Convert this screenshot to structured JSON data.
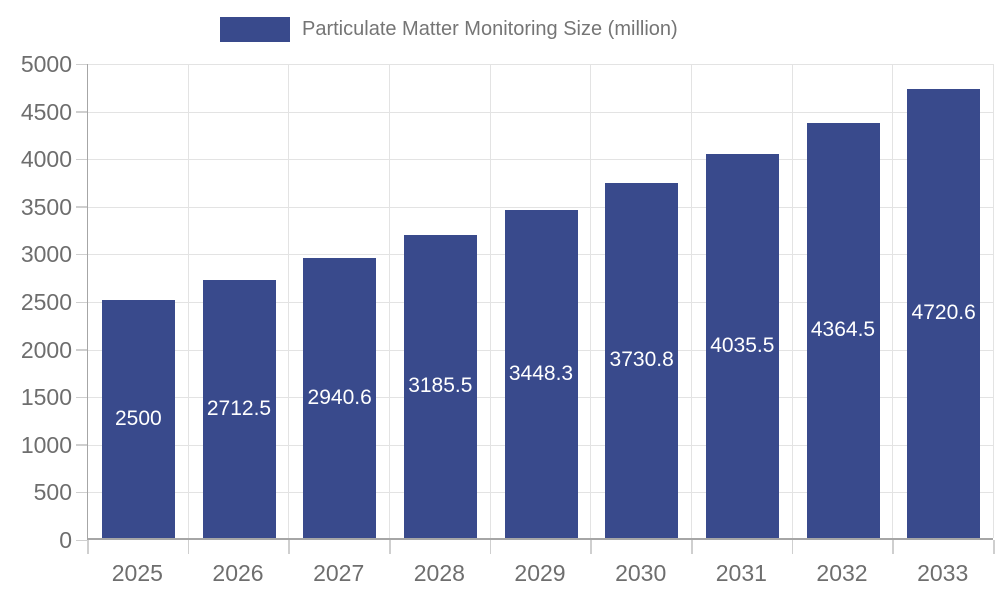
{
  "chart_data": {
    "type": "bar",
    "title": "Particulate Matter Monitoring Size (million)",
    "legend": {
      "label": "Particulate Matter Monitoring Size (million)",
      "position": "top-center"
    },
    "categories": [
      "2025",
      "2026",
      "2027",
      "2028",
      "2029",
      "2030",
      "2031",
      "2032",
      "2033"
    ],
    "series": [
      {
        "name": "Particulate Matter Monitoring Size (million)",
        "values": [
          2500,
          2712.5,
          2940.6,
          3185.5,
          3448.3,
          3730.8,
          4035.5,
          4364.5,
          4720.6
        ],
        "labels": [
          "2500",
          "2712.5",
          "2940.6",
          "3185.5",
          "3448.3",
          "3730.8",
          "4035.5",
          "4364.5",
          "4720.6"
        ]
      }
    ],
    "xlabel": "",
    "ylabel": "",
    "ylim": [
      0,
      5000
    ],
    "ytick_interval": 500,
    "ytick_labels": [
      "0",
      "500",
      "1000",
      "1500",
      "2000",
      "2500",
      "3000",
      "3500",
      "4000",
      "4500",
      "5000"
    ],
    "grid": true,
    "value_labels_inside_bars": true
  },
  "colors": {
    "bar": "#394a8c",
    "bar_label": "#ffffff",
    "grid": "#e3e3e3",
    "axis": "#a6a6a6",
    "tick": "#cfcfcf",
    "axis_text": "#6e6e6e",
    "legend_text": "#757575",
    "background": "#ffffff"
  }
}
